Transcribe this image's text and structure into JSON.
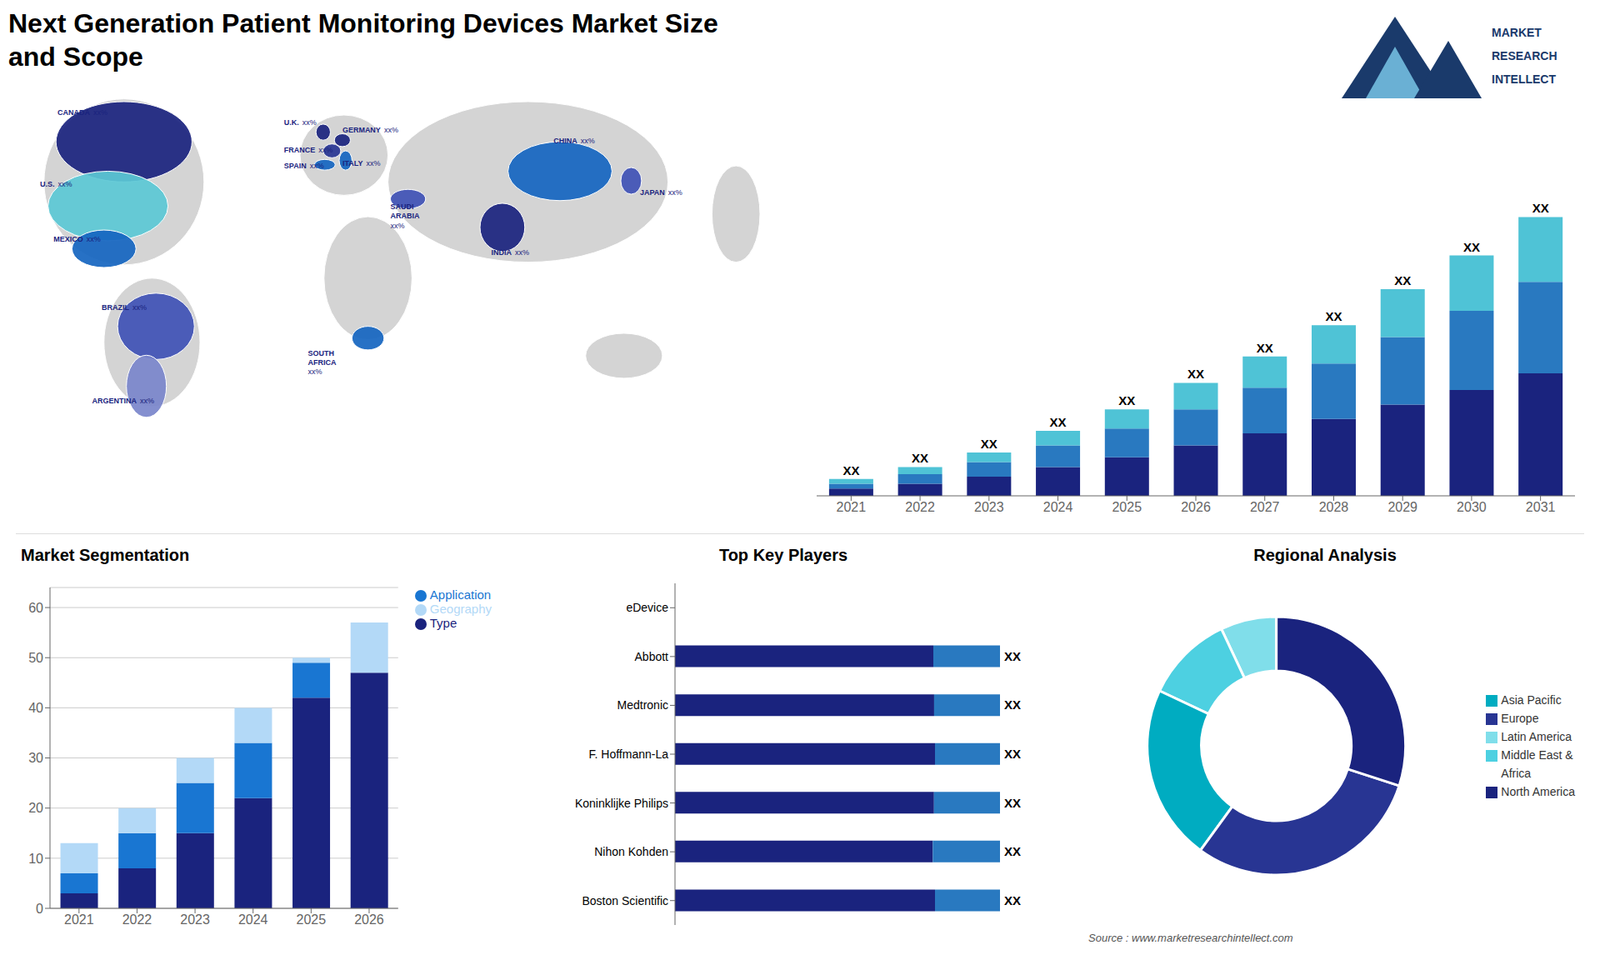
{
  "chart_data": [
    {
      "type": "map",
      "title": "Next Generation Patient Monitoring Devices Market Size and Scope",
      "categories": [
        "CANADA",
        "U.S.",
        "MEXICO",
        "BRAZIL",
        "ARGENTINA",
        "U.K.",
        "FRANCE",
        "SPAIN",
        "GERMANY",
        "ITALY",
        "SAUDI\nARABIA",
        "SOUTH\nAFRICA",
        "CHINA",
        "INDIA",
        "JAPAN"
      ],
      "value_labels": [
        "xx%",
        "xx%",
        "xx%",
        "xx%",
        "xx%",
        "xx%",
        "xx%",
        "xx%",
        "xx%",
        "xx%",
        "xx%",
        "xx%",
        "xx%",
        "xx%",
        "xx%"
      ]
    },
    {
      "type": "bar",
      "stacked": true,
      "categories": [
        "2021",
        "2022",
        "2023",
        "2024",
        "2025",
        "2026",
        "2027",
        "2028",
        "2029",
        "2030",
        "2031"
      ],
      "series": [
        {
          "color": "#1a237e",
          "values": [
            3,
            5,
            8,
            12,
            16,
            21,
            26,
            32,
            38,
            44,
            51
          ]
        },
        {
          "color": "#2979c0",
          "values": [
            2,
            4,
            6,
            9,
            12,
            15,
            19,
            23,
            28,
            33,
            38
          ]
        },
        {
          "color": "#4fc3d6",
          "values": [
            2,
            3,
            4,
            6,
            8,
            11,
            13,
            16,
            20,
            23,
            27
          ],
          "value_labels": [
            "XX",
            "XX",
            "XX",
            "XX",
            "XX",
            "XX",
            "XX",
            "XX",
            "XX",
            "XX",
            "XX"
          ]
        }
      ],
      "data_labels": true,
      "ylim": [
        0,
        150.8
      ],
      "tick_labels": "x",
      "grid": false,
      "annotations": [
        "MARKET",
        "RESEARCH",
        "INTELLECT"
      ]
    },
    {
      "type": "bar",
      "title": "Market Segmentation",
      "stacked": true,
      "categories": [
        "2021",
        "2022",
        "2023",
        "2024",
        "2025",
        "2026"
      ],
      "series": [
        {
          "name": "Type",
          "color": "#1a237e",
          "values": [
            3,
            8,
            15,
            22,
            42,
            47
          ]
        },
        {
          "name": "Application",
          "color": "#1976d2",
          "values": [
            4,
            7,
            10,
            11,
            7,
            0
          ]
        },
        {
          "name": "Geography",
          "color": "#b3d9f7",
          "values": [
            6,
            5,
            5,
            7,
            1,
            10
          ]
        }
      ],
      "ylim": [
        0,
        64
      ],
      "yticks": [
        0,
        10,
        20,
        30,
        40,
        50,
        60
      ],
      "grid": true,
      "legend": "right"
    },
    {
      "type": "bar",
      "title": "Top Key Players",
      "orientation": "horizontal",
      "stacked": true,
      "categories": [
        "eDevice",
        "Abbott",
        "Medtronic",
        "F. Hoffmann-La",
        "Koninklijke Philips",
        "Nihon Kohden",
        "Boston Scientific"
      ],
      "series": [
        {
          "color": "#1a237e",
          "values": [
            null,
            0.794871794871795,
            0.797297297297297,
            0.8,
            0.796875,
            0.793103448275862,
            0.8
          ]
        },
        {
          "color": "#2979c0",
          "values": [
            null,
            0.205128205128205,
            0.202702702702703,
            0.2,
            0.203125,
            0.206896551724138,
            0.2
          ],
          "value_labels": [
            null,
            "XX",
            "XX",
            "XX",
            "XX",
            "XX",
            "XX"
          ]
        }
      ],
      "xlim": [
        0,
        1
      ],
      "tick_labels": "y",
      "data_labels": true,
      "grid": false
    },
    {
      "type": "donut",
      "title": "Regional Analysis",
      "categories": [
        "Latin America",
        "Middle East &\nAfrica",
        "Asia Pacific",
        "Europe",
        "North America"
      ],
      "values": [
        7,
        11,
        22,
        30,
        30
      ],
      "colors": [
        "#80deea",
        "#4dd0e1",
        "#00acc1",
        "#283593",
        "#1a237e"
      ],
      "legend": "right",
      "annotations": [
        "Source : www.marketresearchintellect.com"
      ]
    }
  ]
}
